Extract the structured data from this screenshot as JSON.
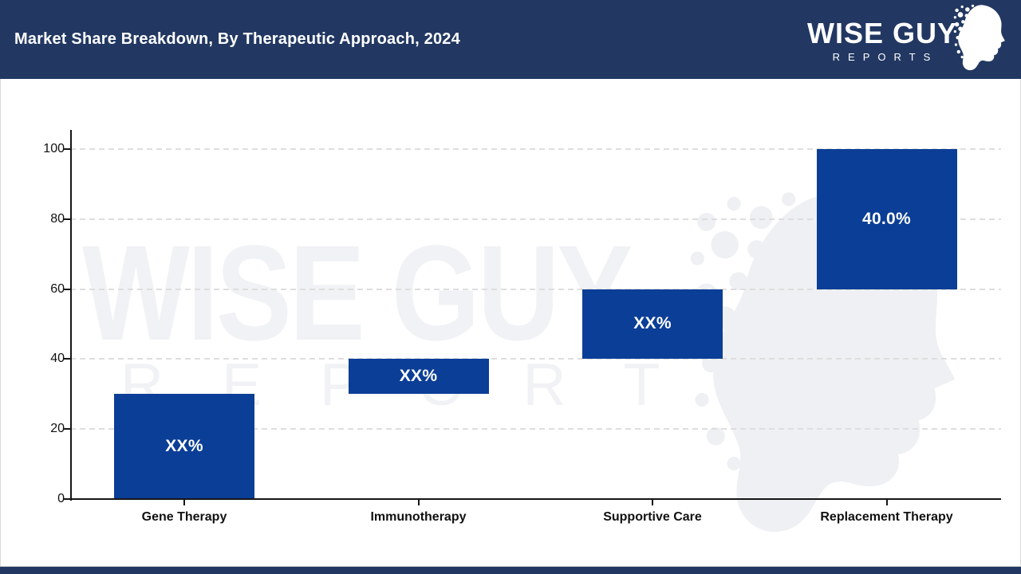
{
  "header": {
    "title": "Market Share Breakdown, By Therapeutic Approach, 2024",
    "logo": {
      "name": "WISE GUY",
      "subtitle": "REPORTS"
    }
  },
  "watermark": {
    "line1": "WISE GUY",
    "line2": "REPORTS"
  },
  "chart_data": {
    "type": "bar",
    "subtype": "floating-waterfall",
    "title": "Market Share Breakdown, By Therapeutic Approach, 2024",
    "categories": [
      "Gene Therapy",
      "Immunotherapy",
      "Supportive Care",
      "Replacement Therapy"
    ],
    "bars": [
      {
        "category": "Gene Therapy",
        "start": 0,
        "end": 30,
        "label": "XX%"
      },
      {
        "category": "Immunotherapy",
        "start": 30,
        "end": 40,
        "label": "XX%"
      },
      {
        "category": "Supportive Care",
        "start": 40,
        "end": 60,
        "label": "XX%"
      },
      {
        "category": "Replacement Therapy",
        "start": 60,
        "end": 100,
        "label": "40.0%"
      }
    ],
    "yticks": [
      0,
      20,
      40,
      60,
      80,
      100
    ],
    "ylim": [
      0,
      100
    ],
    "xlabel": "",
    "ylabel": "",
    "grid": "horizontal-dashed",
    "legend": "none"
  },
  "colors": {
    "header_bg": "#223862",
    "footer_bg": "#223862",
    "bar": "#0b3e96",
    "bar_label": "#ffffff",
    "grid": "#dedede",
    "axis": "#161616",
    "watermark": "#f1f2f5"
  }
}
